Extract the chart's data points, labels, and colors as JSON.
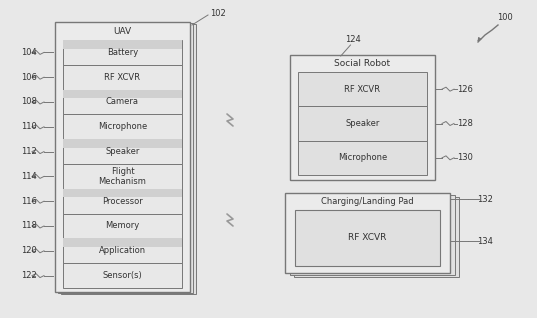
{
  "bg_color": "#e8e8e8",
  "fig_bg": "#e8e8e8",
  "uav_items": [
    {
      "label": "Battery",
      "ref": "104"
    },
    {
      "label": "RF XCVR",
      "ref": "106"
    },
    {
      "label": "Camera",
      "ref": "108"
    },
    {
      "label": "Microphone",
      "ref": "110"
    },
    {
      "label": "Speaker",
      "ref": "112"
    },
    {
      "label": "Flight\nMechanism",
      "ref": "114"
    },
    {
      "label": "Processor",
      "ref": "116"
    },
    {
      "label": "Memory",
      "ref": "118"
    },
    {
      "label": "Application",
      "ref": "120"
    },
    {
      "label": "Sensor(s)",
      "ref": "122"
    }
  ],
  "social_items": [
    {
      "label": "RF XCVR",
      "ref": "126"
    },
    {
      "label": "Speaker",
      "ref": "128"
    },
    {
      "label": "Microphone",
      "ref": "130"
    }
  ],
  "charging_items": [
    {
      "label": "RF XCVR",
      "ref": "134"
    }
  ],
  "ref_main": "102",
  "ref_100": "100",
  "ref_social": "124",
  "ref_charging": "132",
  "line_color": "#777777",
  "box_outer_color": "#f0f0f0",
  "box_inner_color": "#f5f5f5",
  "inner_shaded_color": "#d8d8d8",
  "text_color": "#333333",
  "font_size": 6.5,
  "font_size_ref": 6.0
}
